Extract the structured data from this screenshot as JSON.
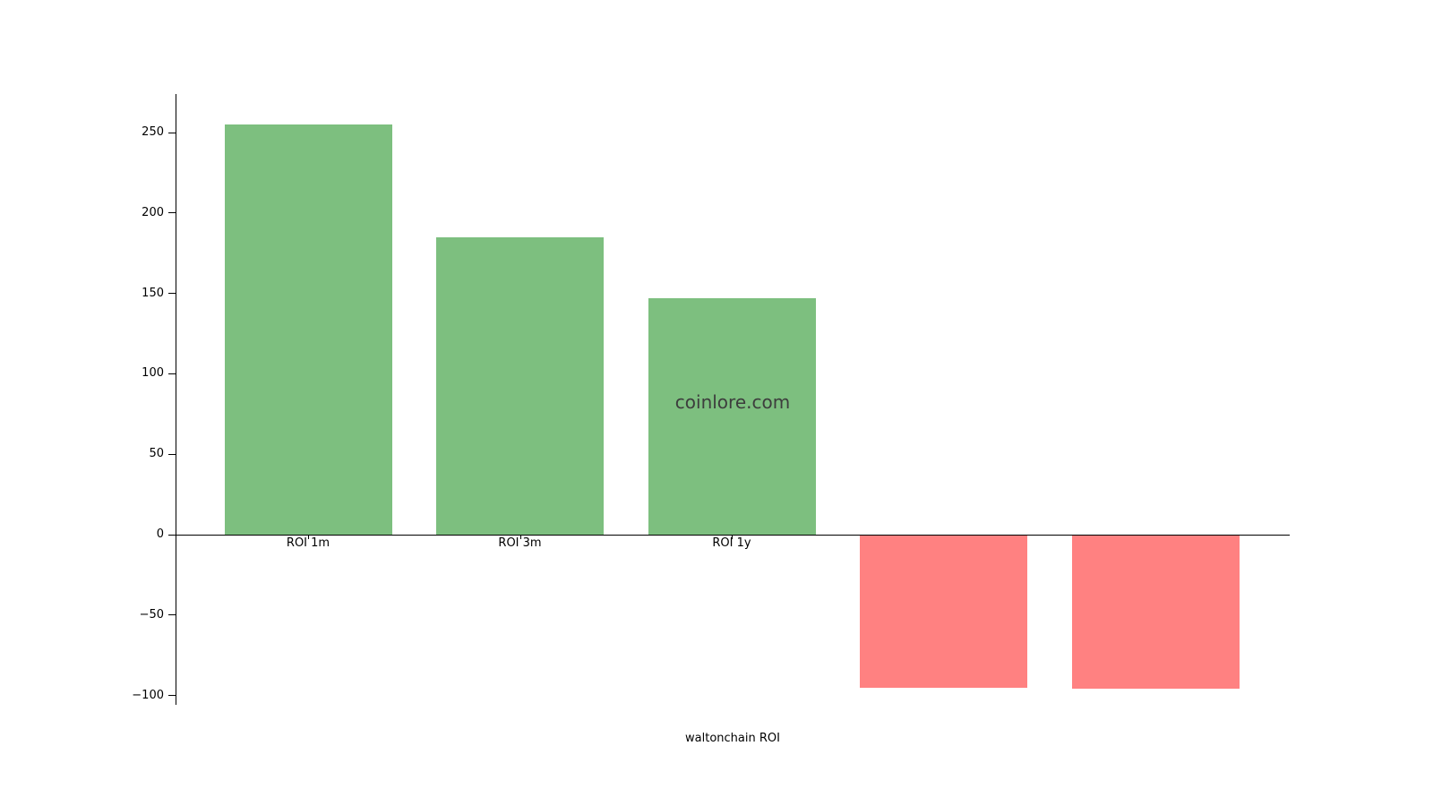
{
  "watermark": {
    "text": "coinlore.com",
    "color": "#3d3d3d"
  },
  "chart_data": {
    "type": "bar",
    "title": "waltonchain ROI",
    "categories": [
      "ROI 1m",
      "ROI 3m",
      "ROI 1y",
      "",
      ""
    ],
    "values": [
      255,
      185,
      147,
      -95,
      -96
    ],
    "positive_color": "#7dbf7f",
    "negative_color": "#ff8181",
    "yticks": [
      250,
      200,
      150,
      100,
      50,
      0,
      -50,
      -100
    ],
    "ylim": [
      -106,
      274
    ],
    "xlabel": "waltonchain ROI",
    "ylabel": "",
    "grid": false,
    "legend": "none",
    "axis_color": "#000000"
  }
}
